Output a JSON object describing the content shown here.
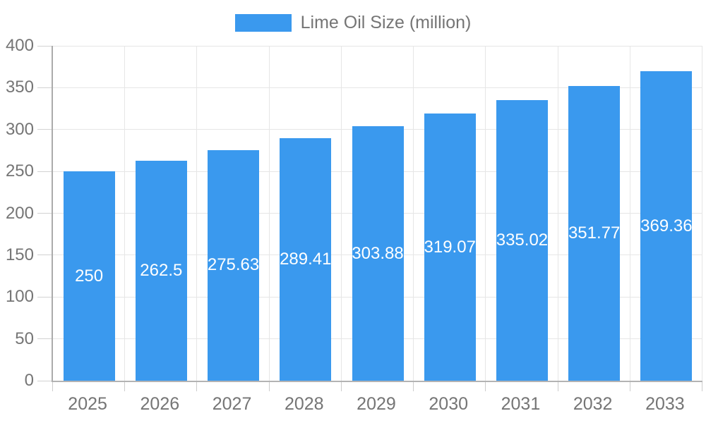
{
  "chart_data": {
    "type": "bar",
    "legend": "Lime Oil Size (million)",
    "legend_position": "top",
    "categories": [
      "2025",
      "2026",
      "2027",
      "2028",
      "2029",
      "2030",
      "2031",
      "2032",
      "2033"
    ],
    "series": [
      {
        "name": "Lime Oil Size (million)",
        "values": [
          250,
          262.5,
          275.63,
          289.41,
          303.88,
          319.07,
          335.02,
          351.77,
          369.36
        ],
        "data_labels": [
          "250",
          "262.5",
          "275.63",
          "289.41",
          "303.88",
          "319.07",
          "335.02",
          "351.77",
          "369.36"
        ]
      }
    ],
    "xlabel": "",
    "ylabel": "",
    "title": "",
    "ylim": [
      0,
      400
    ],
    "yticks": [
      0,
      50,
      100,
      150,
      200,
      250,
      300,
      350,
      400
    ],
    "grid": true,
    "data_label_position": "inside-center"
  },
  "colors": {
    "bar": "#3a99ee",
    "bar_label": "#ffffff",
    "axis_line": "#ababab",
    "gridline": "#e6e6e6",
    "tick": "#d2d2d2",
    "axis_text": "#757575",
    "legend_text": "#757575",
    "background": "#ffffff"
  }
}
